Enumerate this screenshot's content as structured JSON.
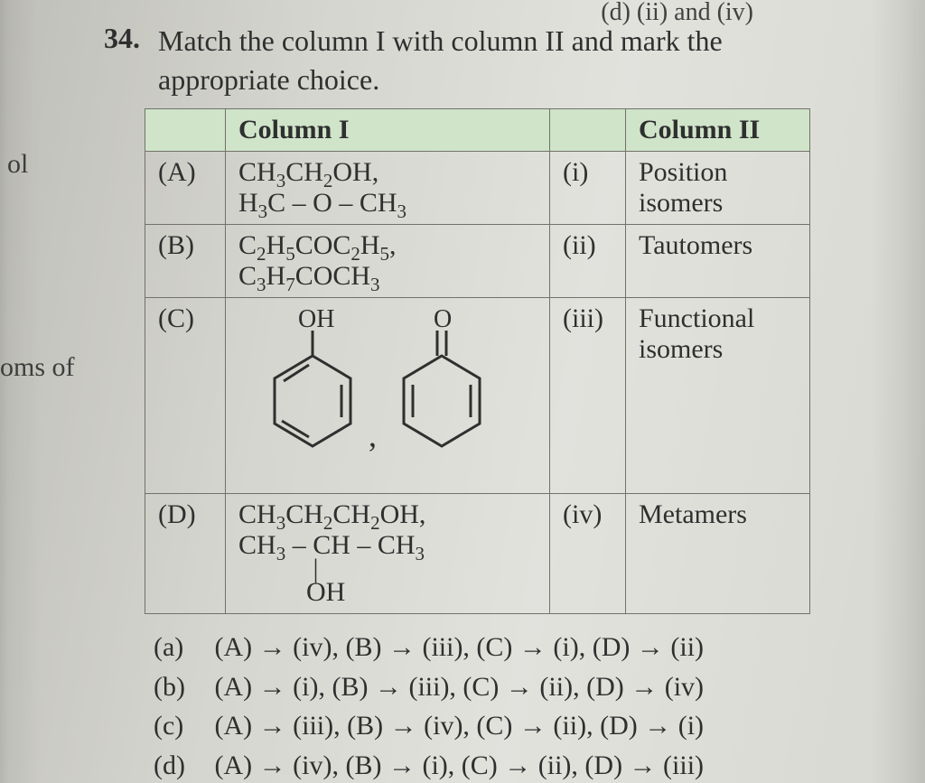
{
  "top_fragment": "(d)  (ii) and (iv)",
  "margin_notes": {
    "line1": "ol",
    "line2": "oms of"
  },
  "question": {
    "number": "34.",
    "text_line1": "Match the column I with column II and mark the",
    "text_line2": "appropriate choice."
  },
  "table": {
    "header": {
      "col1": "Column I",
      "col2": "Column II"
    },
    "rows": [
      {
        "labL": "(A)",
        "col1_line1_html": "CH<span class='sub'>3</span>CH<span class='sub'>2</span>OH,",
        "col1_line2_html": "H<span class='sub'>3</span>C – O – CH<span class='sub'>3</span>",
        "labR": "(i)",
        "col2_line1": "Position",
        "col2_line2": "isomers"
      },
      {
        "labL": "(B)",
        "col1_line1_html": "C<span class='sub'>2</span>H<span class='sub'>5</span>COC<span class='sub'>2</span>H<span class='sub'>5</span>,",
        "col1_line2_html": "C<span class='sub'>3</span>H<span class='sub'>7</span>COCH<span class='sub'>3</span>",
        "labR": "(ii)",
        "col2_line1": "Tautomers",
        "col2_line2": ""
      },
      {
        "labL": "(C)",
        "structures": {
          "phenol_label": "OH",
          "ketone_label": "O",
          "stroke": "#2a2a2a",
          "stroke_width": 3
        },
        "labR": "(iii)",
        "col2_line1": "Functional",
        "col2_line2": "isomers"
      },
      {
        "labL": "(D)",
        "col1_line1_html": "CH<span class='sub'>3</span>CH<span class='sub'>2</span>CH<span class='sub'>2</span>OH,",
        "col1_line2_html": "CH<span class='sub'>3</span> – CH – CH<span class='sub'>3</span>",
        "col1_line3_html": "&nbsp;&nbsp;&nbsp;&nbsp;&nbsp;&nbsp;&nbsp;&nbsp;&nbsp;&nbsp;&nbsp;|",
        "col1_line4_html": "&nbsp;&nbsp;&nbsp;&nbsp;&nbsp;&nbsp;&nbsp;&nbsp;&nbsp;&nbsp;OH",
        "labR": "(iv)",
        "col2_line1": "Metamers",
        "col2_line2": ""
      }
    ]
  },
  "options": {
    "a": {
      "lab": "(a)",
      "text": "(A) → (iv), (B) → (iii), (C) → (i), (D) → (ii)"
    },
    "b": {
      "lab": "(b)",
      "text": "(A) → (i), (B) → (iii), (C) → (ii), (D) → (iv)"
    },
    "c": {
      "lab": "(c)",
      "text": "(A) → (iii), (B) → (iv), (C) → (ii), (D) → (i)"
    },
    "d": {
      "lab": "(d)",
      "text": "(A) → (iv), (B) → (i), (C) → (ii), (D) → (iii)"
    }
  }
}
